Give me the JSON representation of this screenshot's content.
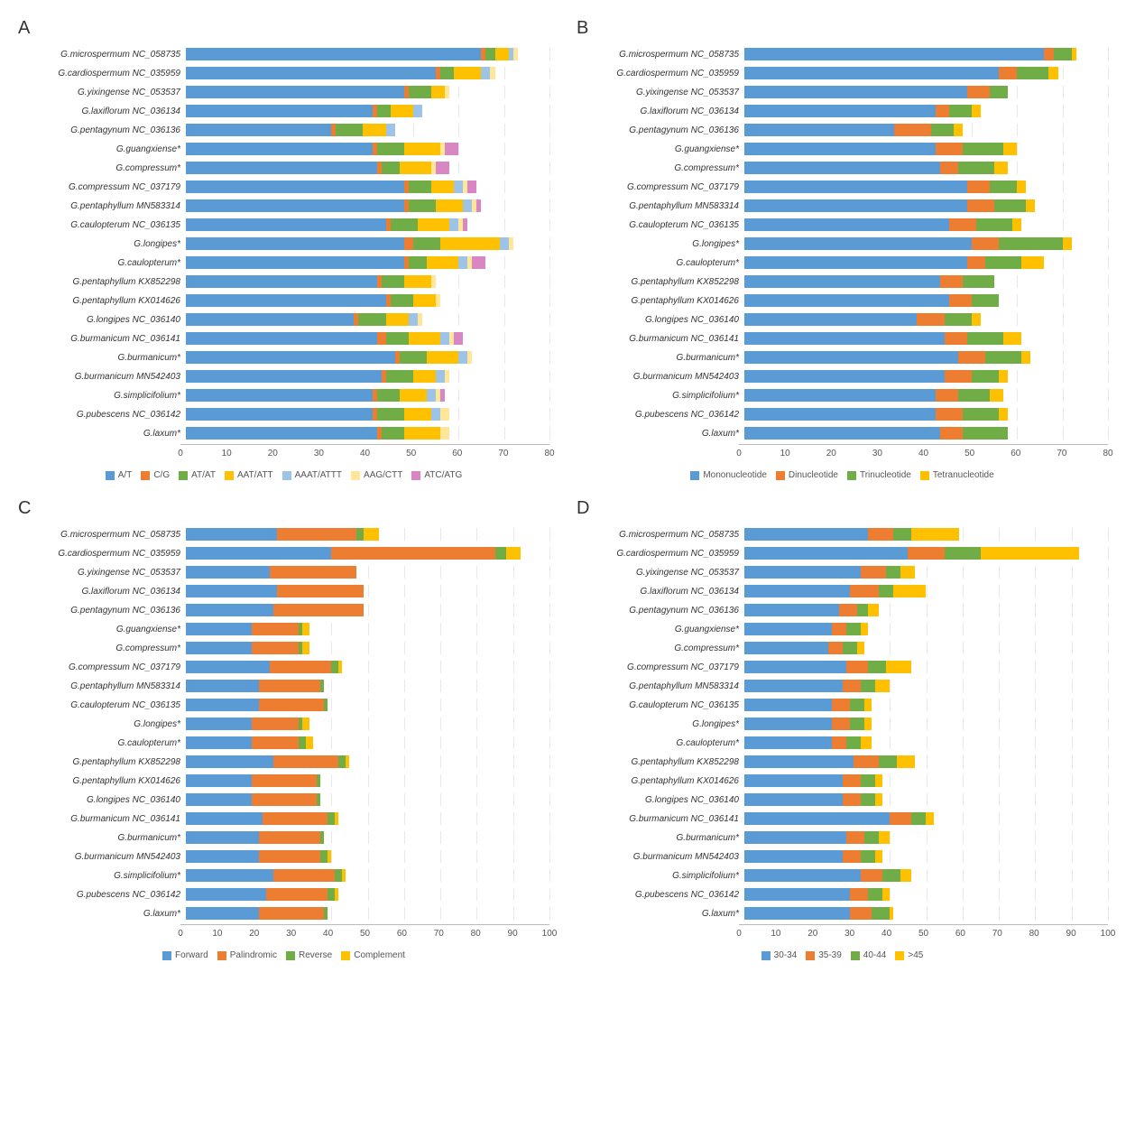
{
  "font_family": "Arial, sans-serif",
  "background_color": "#ffffff",
  "grid_color": "#e8e8e8",
  "axis_color": "#bbbbbb",
  "label_fontsize": 10,
  "panel_label_fontsize": 20,
  "species": [
    "G.microspermum NC_058735",
    "G.cardiospermum NC_035959",
    "G.yixingense NC_053537",
    "G.laxiflorum NC_036134",
    "G.pentagynum NC_036136",
    "G.guangxiense*",
    "G.compressum*",
    "G.compressum NC_037179",
    "G.pentaphyllum MN583314",
    "G.caulopterum NC_036135",
    "G.longipes*",
    "G.caulopterum*",
    "G.pentaphyllum KX852298",
    "G.pentaphyllum KX014626",
    "G.longipes NC_036140",
    "G.burmanicum NC_036141",
    "G.burmanicum*",
    "G.burmanicum MN542403",
    "G.simplicifolium*",
    "G.pubescens NC_036142",
    "G.laxum*"
  ],
  "panels": {
    "A": {
      "label": "A",
      "type": "stacked-bar-horizontal",
      "xmax": 80,
      "xtick_step": 10,
      "series": [
        {
          "name": "A/T",
          "color": "#5b9bd5"
        },
        {
          "name": "C/G",
          "color": "#ed7d31"
        },
        {
          "name": "AT/AT",
          "color": "#70ad47"
        },
        {
          "name": "AAT/ATT",
          "color": "#ffc000"
        },
        {
          "name": "AAAT/ATTT",
          "color": "#9dc3e6"
        },
        {
          "name": "AAG/CTT",
          "color": "#ffe699"
        },
        {
          "name": "ATC/ATG",
          "color": "#d986c4"
        }
      ],
      "data": [
        [
          65,
          1,
          2,
          3,
          1,
          1,
          0
        ],
        [
          55,
          1,
          3,
          6,
          2,
          1,
          0
        ],
        [
          48,
          1,
          5,
          3,
          0,
          1,
          0
        ],
        [
          41,
          1,
          3,
          5,
          2,
          0,
          0
        ],
        [
          32,
          1,
          6,
          5,
          2,
          0,
          0
        ],
        [
          41,
          1,
          6,
          8,
          0,
          1,
          3
        ],
        [
          42,
          1,
          4,
          7,
          0,
          1,
          3
        ],
        [
          48,
          1,
          5,
          5,
          2,
          1,
          2
        ],
        [
          48,
          1,
          6,
          6,
          2,
          1,
          1
        ],
        [
          44,
          1,
          6,
          7,
          2,
          1,
          1
        ],
        [
          48,
          2,
          6,
          13,
          2,
          1,
          0
        ],
        [
          48,
          1,
          4,
          7,
          2,
          1,
          3
        ],
        [
          42,
          1,
          5,
          6,
          0,
          1,
          0
        ],
        [
          44,
          1,
          5,
          5,
          0,
          1,
          0
        ],
        [
          37,
          1,
          6,
          5,
          2,
          1,
          0
        ],
        [
          42,
          2,
          5,
          7,
          2,
          1,
          2
        ],
        [
          46,
          1,
          6,
          7,
          2,
          1,
          0
        ],
        [
          43,
          1,
          6,
          5,
          2,
          1,
          0
        ],
        [
          41,
          1,
          5,
          6,
          2,
          1,
          1
        ],
        [
          41,
          1,
          6,
          6,
          2,
          2,
          0
        ],
        [
          42,
          1,
          5,
          8,
          0,
          2,
          0
        ]
      ]
    },
    "B": {
      "label": "B",
      "type": "stacked-bar-horizontal",
      "xmax": 80,
      "xtick_step": 10,
      "series": [
        {
          "name": "Mononucleotide",
          "color": "#5b9bd5"
        },
        {
          "name": "Dinucleotide",
          "color": "#ed7d31"
        },
        {
          "name": "Trinucleotide",
          "color": "#70ad47"
        },
        {
          "name": "Tetranucleotide",
          "color": "#ffc000"
        }
      ],
      "data": [
        [
          66,
          2,
          4,
          1
        ],
        [
          56,
          4,
          7,
          2
        ],
        [
          49,
          5,
          4,
          0
        ],
        [
          42,
          3,
          5,
          2
        ],
        [
          33,
          8,
          5,
          2
        ],
        [
          42,
          6,
          9,
          3
        ],
        [
          43,
          4,
          8,
          3
        ],
        [
          49,
          5,
          6,
          2
        ],
        [
          49,
          6,
          7,
          2
        ],
        [
          45,
          6,
          8,
          2
        ],
        [
          50,
          6,
          14,
          2
        ],
        [
          49,
          4,
          8,
          5
        ],
        [
          43,
          5,
          7,
          0
        ],
        [
          45,
          5,
          6,
          0
        ],
        [
          38,
          6,
          6,
          2
        ],
        [
          44,
          5,
          8,
          4
        ],
        [
          47,
          6,
          8,
          2
        ],
        [
          44,
          6,
          6,
          2
        ],
        [
          42,
          5,
          7,
          3
        ],
        [
          42,
          6,
          8,
          2
        ],
        [
          43,
          5,
          10,
          0
        ]
      ]
    },
    "C": {
      "label": "C",
      "type": "stacked-bar-horizontal",
      "xmax": 100,
      "xtick_step": 10,
      "series": [
        {
          "name": "Forward",
          "color": "#5b9bd5"
        },
        {
          "name": "Palindromic",
          "color": "#ed7d31"
        },
        {
          "name": "Reverse",
          "color": "#70ad47"
        },
        {
          "name": "Complement",
          "color": "#ffc000"
        }
      ],
      "data": [
        [
          25,
          22,
          2,
          4
        ],
        [
          40,
          45,
          3,
          4
        ],
        [
          23,
          24,
          0,
          0
        ],
        [
          25,
          24,
          0,
          0
        ],
        [
          24,
          25,
          0,
          0
        ],
        [
          18,
          13,
          1,
          2
        ],
        [
          18,
          13,
          1,
          2
        ],
        [
          23,
          17,
          2,
          1
        ],
        [
          20,
          17,
          1,
          0
        ],
        [
          20,
          18,
          1,
          0
        ],
        [
          18,
          13,
          1,
          2
        ],
        [
          18,
          13,
          2,
          2
        ],
        [
          24,
          18,
          2,
          1
        ],
        [
          18,
          18,
          1,
          0
        ],
        [
          18,
          18,
          1,
          0
        ],
        [
          21,
          18,
          2,
          1
        ],
        [
          20,
          17,
          1,
          0
        ],
        [
          20,
          17,
          2,
          1
        ],
        [
          24,
          17,
          2,
          1
        ],
        [
          22,
          17,
          2,
          1
        ],
        [
          20,
          18,
          1,
          0
        ]
      ]
    },
    "D": {
      "label": "D",
      "type": "stacked-bar-horizontal",
      "xmax": 100,
      "xtick_step": 10,
      "series": [
        {
          "name": "30-34",
          "color": "#5b9bd5"
        },
        {
          "name": "35-39",
          "color": "#ed7d31"
        },
        {
          "name": "40-44",
          "color": "#70ad47"
        },
        {
          "name": ">45",
          "color": "#ffc000"
        }
      ],
      "data": [
        [
          34,
          7,
          5,
          13
        ],
        [
          45,
          10,
          10,
          27
        ],
        [
          32,
          7,
          4,
          4
        ],
        [
          29,
          8,
          4,
          9
        ],
        [
          26,
          5,
          3,
          3
        ],
        [
          24,
          4,
          4,
          2
        ],
        [
          23,
          4,
          4,
          2
        ],
        [
          28,
          6,
          5,
          7
        ],
        [
          27,
          5,
          4,
          4
        ],
        [
          24,
          5,
          4,
          2
        ],
        [
          24,
          5,
          4,
          2
        ],
        [
          24,
          4,
          4,
          3
        ],
        [
          30,
          7,
          5,
          5
        ],
        [
          27,
          5,
          4,
          2
        ],
        [
          27,
          5,
          4,
          2
        ],
        [
          40,
          6,
          4,
          2
        ],
        [
          28,
          5,
          4,
          3
        ],
        [
          27,
          5,
          4,
          2
        ],
        [
          32,
          6,
          5,
          3
        ],
        [
          29,
          5,
          4,
          2
        ],
        [
          29,
          6,
          5,
          1
        ]
      ]
    }
  }
}
